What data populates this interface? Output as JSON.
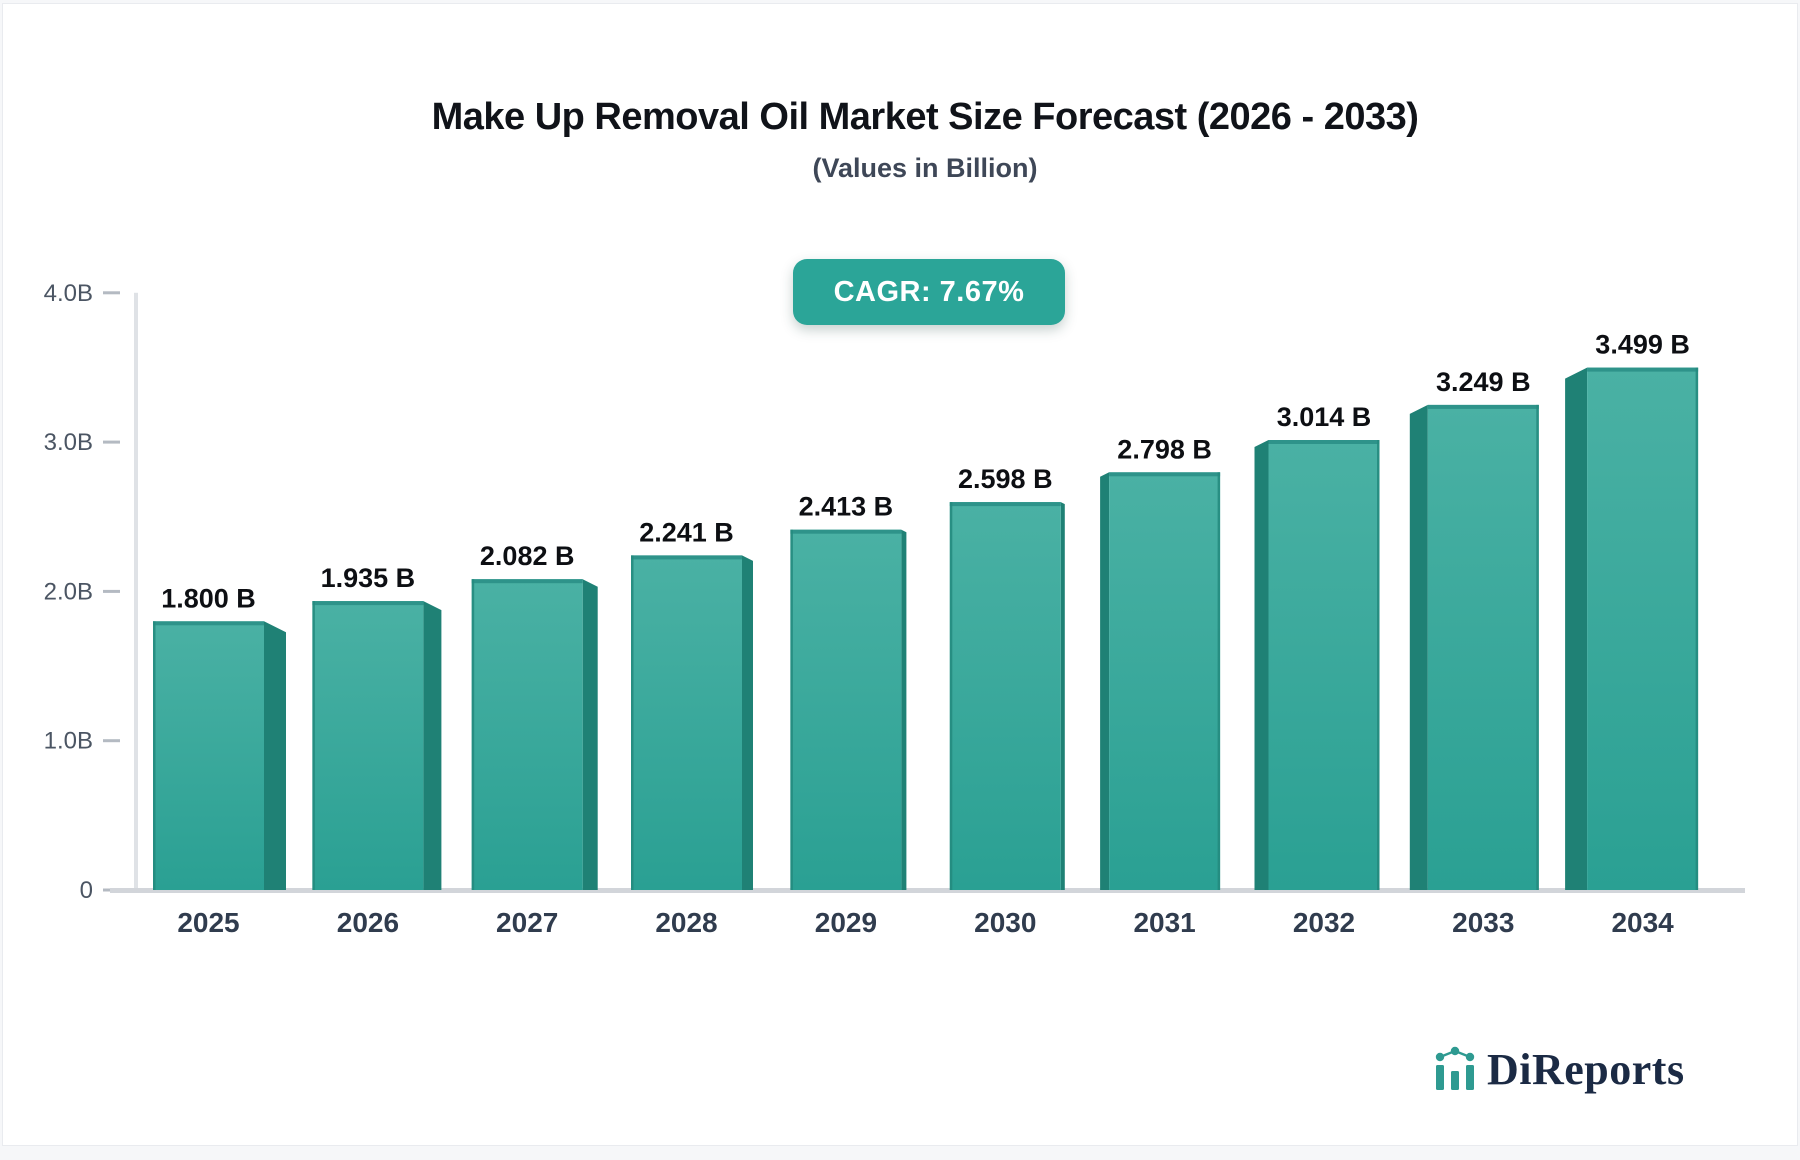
{
  "header": {
    "title": "Make Up Removal Oil Market Size Forecast (2026 - 2033)",
    "subtitle": "(Values in Billion)"
  },
  "badge": {
    "label": "CAGR: 7.67%",
    "background": "#2BA598",
    "text_color": "#FFFFFF"
  },
  "chart_data": {
    "type": "bar",
    "title": "Make Up Removal Oil Market Size Forecast (2026 - 2033)",
    "subtitle": "(Values in Billion)",
    "annotation": "CAGR: 7.67%",
    "categories": [
      "2025",
      "2026",
      "2027",
      "2028",
      "2029",
      "2030",
      "2031",
      "2032",
      "2033",
      "2034"
    ],
    "values": [
      1.8,
      1.935,
      2.082,
      2.241,
      2.413,
      2.598,
      2.798,
      3.014,
      3.249,
      3.499
    ],
    "value_labels": [
      "1.800 B",
      "1.935 B",
      "2.082 B",
      "2.241 B",
      "2.413 B",
      "2.598 B",
      "2.798 B",
      "3.014 B",
      "3.249 B",
      "3.499 B"
    ],
    "xlabel": "",
    "ylabel": "",
    "ylim": [
      0,
      4
    ],
    "y_ticks": [
      {
        "value": 0,
        "label": "0"
      },
      {
        "value": 1,
        "label": "1.0B"
      },
      {
        "value": 2,
        "label": "2.0B"
      },
      {
        "value": 3,
        "label": "3.0B"
      },
      {
        "value": 4,
        "label": "4.0B"
      }
    ],
    "grid": false,
    "legend": false,
    "colors": {
      "bar_face_top": "#4AB1A4",
      "bar_face_bottom": "#2AA093",
      "bar_side": "#1F8175",
      "bar_top_edge": "#2E938A",
      "bar_edge_line": "#238A7E",
      "axis_line": "#DFE2E6",
      "baseline": "#D2D5DA",
      "tick_dash": "#B4BAC2",
      "y_tick_text": "#4B5563",
      "x_tick_text": "#303C4E",
      "value_text": "#0D0F13"
    }
  },
  "footer": {
    "brand": "DiReports",
    "brand_color": "#1B2A44",
    "icon_color": "#2E9A91"
  }
}
